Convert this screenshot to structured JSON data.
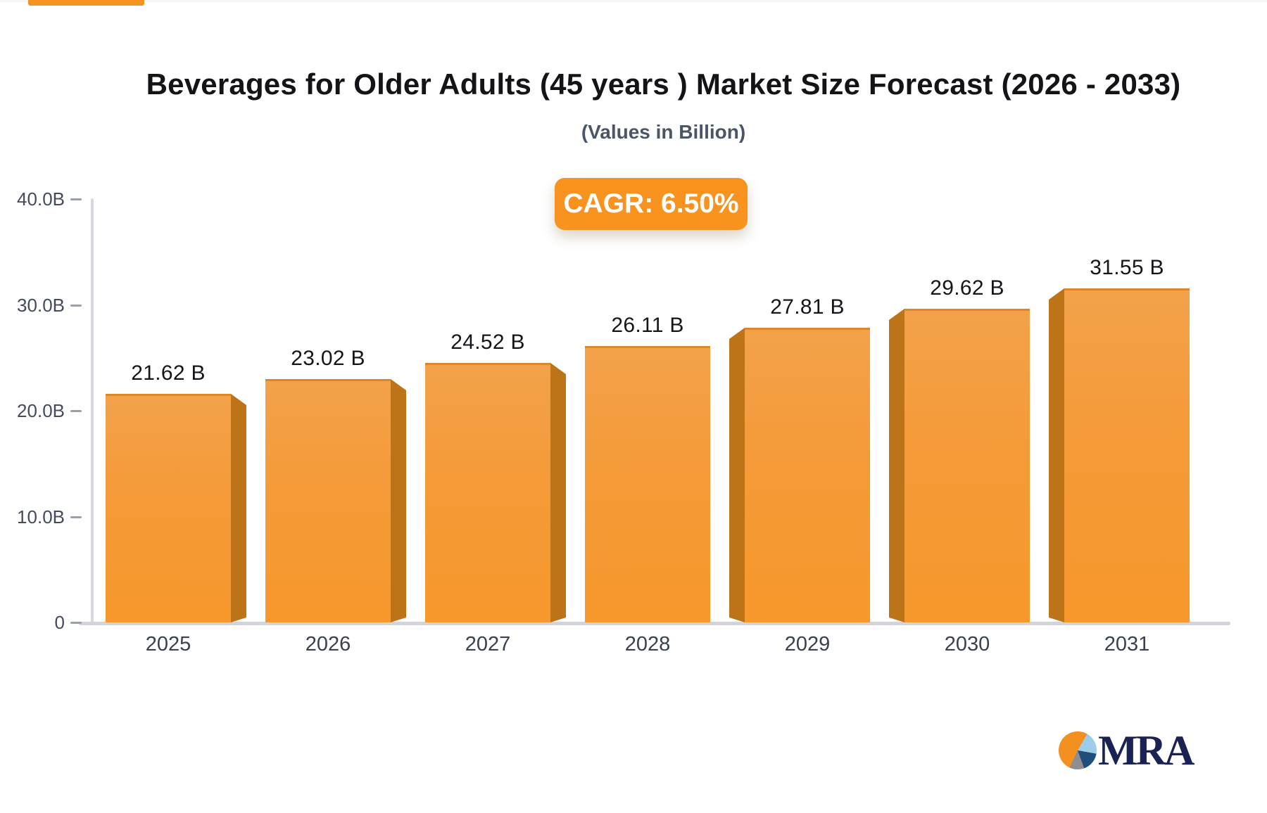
{
  "header": {
    "title": "Beverages for Older Adults (45 years ) Market Size Forecast (2026 - 2033)",
    "subtitle": "(Values in Billion)"
  },
  "badge": {
    "label": "CAGR: 6.50%"
  },
  "chart_data": {
    "type": "bar",
    "title": "Beverages for Older Adults (45 years ) Market Size Forecast (2026 - 2033)",
    "subtitle": "(Values in Billion)",
    "categories": [
      "2025",
      "2026",
      "2027",
      "2028",
      "2029",
      "2030",
      "2031"
    ],
    "values": [
      21.62,
      23.02,
      24.52,
      26.11,
      27.81,
      29.62,
      31.55
    ],
    "value_labels": [
      "21.62 B",
      "23.02 B",
      "24.52 B",
      "26.11 B",
      "27.81 B",
      "29.62 B",
      "31.55 B"
    ],
    "cagr_label": "CAGR: 6.50%",
    "xlabel": "",
    "ylabel": "",
    "ylim": [
      0,
      40
    ],
    "ytick_values": [
      40,
      30,
      20,
      10,
      0
    ],
    "ytick_labels": [
      "40.0B",
      "30.0B",
      "20.0B",
      "10.0B",
      "0"
    ],
    "grid": "off",
    "legend": "none",
    "bar_face_color": "#F49A38",
    "bar_side_color": "#BD7318",
    "bar_edge_color": "#DD8727",
    "axis_color": "#D5D7DC",
    "badge_color": "#F7931E"
  },
  "logo": {
    "text": "MRA",
    "text_color": "#1A2254",
    "pie_colors": [
      "#F3901F",
      "#9DCDEA",
      "#1E4E79",
      "#8E8E90"
    ]
  }
}
